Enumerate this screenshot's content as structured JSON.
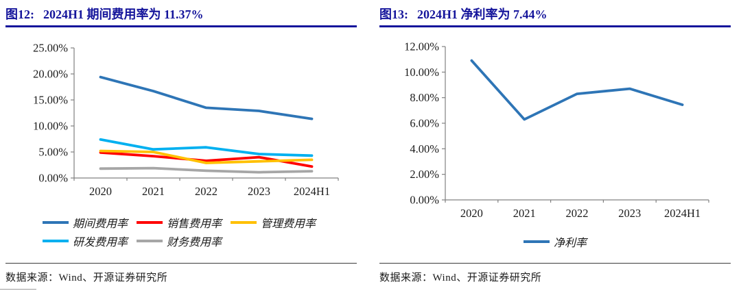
{
  "colors": {
    "title_navy": "#14149B",
    "axis_gray": "#808080",
    "text_black": "#1a1a1a"
  },
  "figures": [
    {
      "fig_label": "图12:",
      "title": "2024H1 期间费用率为 11.37%",
      "source": "数据来源：Wind、开源证券研究所"
    },
    {
      "fig_label": "图13:",
      "title": "2024H1 净利率为 7.44%",
      "source": "数据来源：Wind、开源证券研究所"
    }
  ],
  "chart_data": [
    {
      "type": "line",
      "title": "2024H1 期间费用率为 11.37%",
      "categories": [
        "2020",
        "2021",
        "2022",
        "2023",
        "2024H1"
      ],
      "series": [
        {
          "name": "期间费用率",
          "color": "#2E75B6",
          "values": [
            19.4,
            16.7,
            13.5,
            12.9,
            11.37
          ]
        },
        {
          "name": "销售费用率",
          "color": "#FF0000",
          "values": [
            4.9,
            4.2,
            3.3,
            4.0,
            2.2
          ]
        },
        {
          "name": "管理费用率",
          "color": "#FFC000",
          "values": [
            5.2,
            5.0,
            2.9,
            3.2,
            3.5
          ]
        },
        {
          "name": "研发费用率",
          "color": "#00B0F0",
          "values": [
            7.4,
            5.5,
            5.9,
            4.6,
            4.3
          ]
        },
        {
          "name": "财务费用率",
          "color": "#A6A6A6",
          "values": [
            1.8,
            1.9,
            1.4,
            1.1,
            1.3
          ]
        }
      ],
      "xlabel": "",
      "ylabel": "",
      "ylim": [
        0,
        25
      ],
      "ytick_step": 5,
      "ytick_labels": [
        "0.00%",
        "5.00%",
        "10.00%",
        "15.00%",
        "20.00%",
        "25.00%"
      ],
      "grid": false,
      "legend_position": "bottom"
    },
    {
      "type": "line",
      "title": "2024H1 净利率为 7.44%",
      "categories": [
        "2020",
        "2021",
        "2022",
        "2023",
        "2024H1"
      ],
      "series": [
        {
          "name": "净利率",
          "color": "#2E75B6",
          "values": [
            10.9,
            6.3,
            8.3,
            8.7,
            7.44
          ]
        }
      ],
      "xlabel": "",
      "ylabel": "",
      "ylim": [
        0,
        12
      ],
      "ytick_step": 2,
      "ytick_labels": [
        "0.00%",
        "2.00%",
        "4.00%",
        "6.00%",
        "8.00%",
        "10.00%",
        "12.00%"
      ],
      "grid": false,
      "legend_position": "bottom"
    }
  ]
}
